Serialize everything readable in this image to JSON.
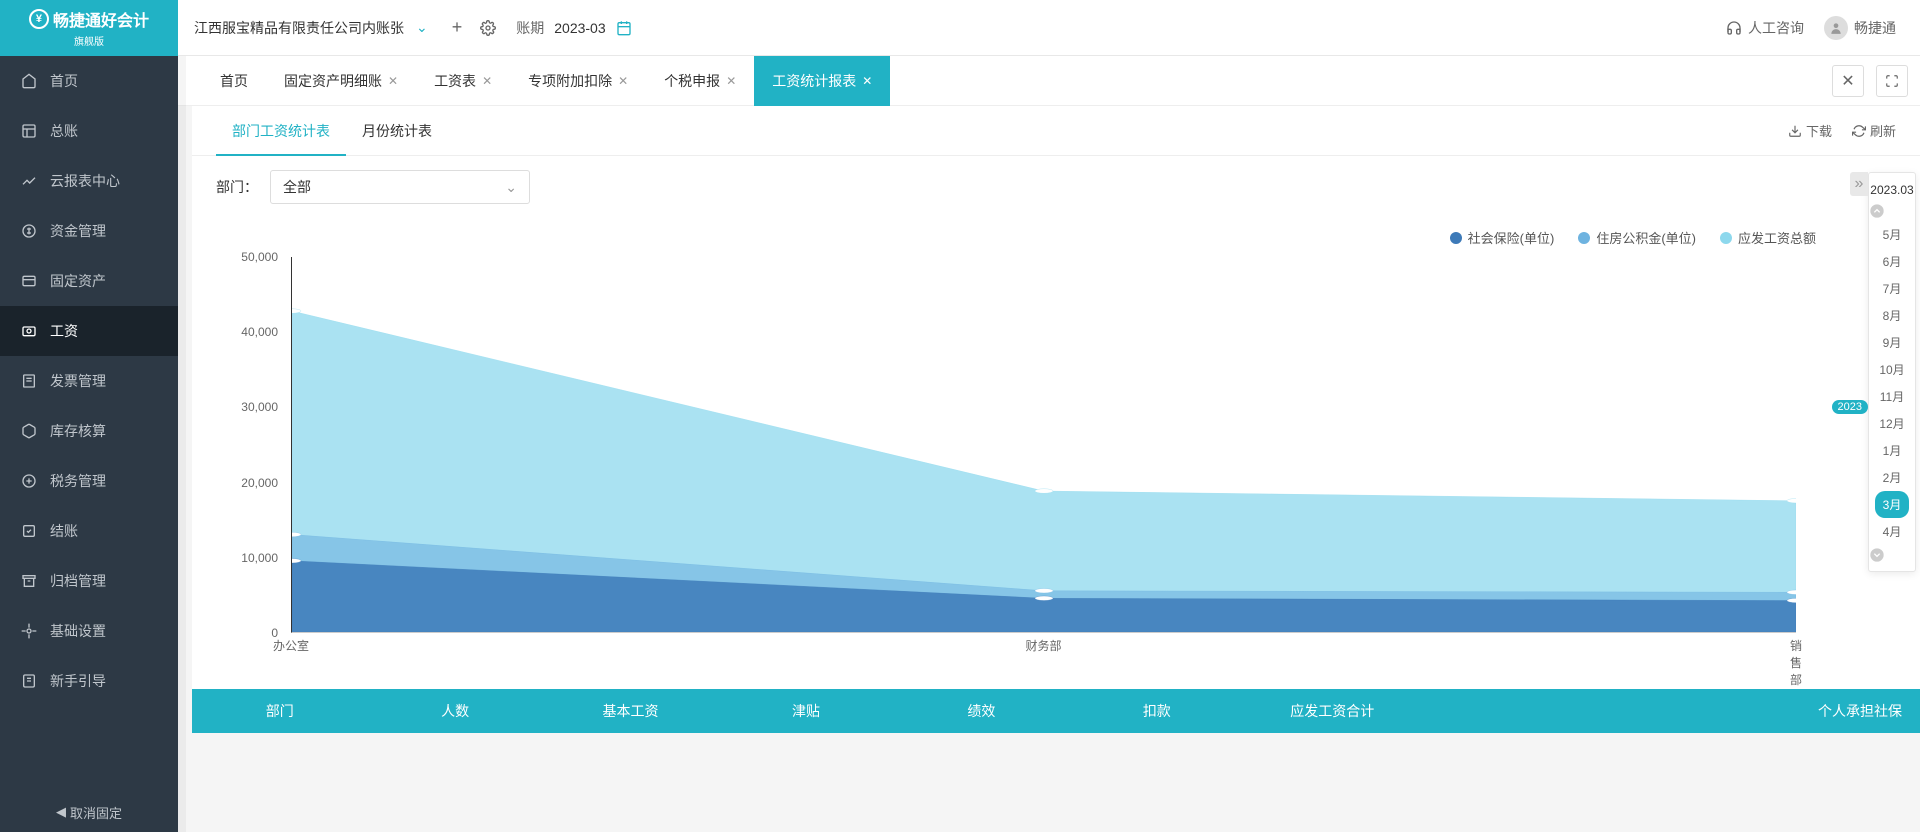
{
  "brand": {
    "main": "畅捷通好会计",
    "sub": "旗舰版"
  },
  "header": {
    "company": "江西服宝精品有限责任公司内账张",
    "period_label": "账期",
    "period_value": "2023-03",
    "consult": "人工咨询",
    "user": "畅捷通"
  },
  "sidebar": {
    "items": [
      {
        "icon": "home",
        "label": "首页"
      },
      {
        "icon": "ledger",
        "label": "总账"
      },
      {
        "icon": "report",
        "label": "云报表中心"
      },
      {
        "icon": "fund",
        "label": "资金管理"
      },
      {
        "icon": "asset",
        "label": "固定资产"
      },
      {
        "icon": "salary",
        "label": "工资"
      },
      {
        "icon": "invoice",
        "label": "发票管理"
      },
      {
        "icon": "inventory",
        "label": "库存核算"
      },
      {
        "icon": "tax",
        "label": "税务管理"
      },
      {
        "icon": "close",
        "label": "结账"
      },
      {
        "icon": "archive",
        "label": "归档管理"
      },
      {
        "icon": "settings",
        "label": "基础设置"
      },
      {
        "icon": "guide",
        "label": "新手引导"
      }
    ],
    "active_index": 5,
    "footer": "取消固定"
  },
  "tabs": {
    "items": [
      {
        "label": "首页",
        "closable": false
      },
      {
        "label": "固定资产明细账",
        "closable": true
      },
      {
        "label": "工资表",
        "closable": true
      },
      {
        "label": "专项附加扣除",
        "closable": true
      },
      {
        "label": "个税申报",
        "closable": true
      },
      {
        "label": "工资统计报表",
        "closable": true
      }
    ],
    "active_index": 5
  },
  "sub_tabs": {
    "items": [
      "部门工资统计表",
      "月份统计表"
    ],
    "active_index": 0,
    "download": "下载",
    "refresh": "刷新"
  },
  "filter": {
    "label": "部门：",
    "value": "全部"
  },
  "chart": {
    "type": "area",
    "legend": [
      {
        "label": "社会保险(单位)",
        "color": "#3d7ab8"
      },
      {
        "label": "住房公积金(单位)",
        "color": "#6eb3e0"
      },
      {
        "label": "应发工资总额",
        "color": "#8dd8ed"
      }
    ],
    "y_axis": {
      "min": 0,
      "max": 50000,
      "step": 10000,
      "labels": [
        "0",
        "10,000",
        "20,000",
        "30,000",
        "40,000",
        "50,000"
      ]
    },
    "x_axis": {
      "categories": [
        "办公室",
        "财务部",
        "销售部"
      ]
    },
    "series": {
      "social": {
        "color": "#3d7ab8",
        "fill_opacity": 0.85,
        "values": [
          9500,
          4500,
          4200
        ]
      },
      "housing": {
        "color": "#6eb3e0",
        "fill_opacity": 0.6,
        "values": [
          13000,
          5500,
          5300
        ]
      },
      "salary": {
        "color": "#8dd8ed",
        "fill_opacity": 0.75,
        "values": [
          42800,
          18800,
          17500
        ]
      }
    },
    "background_color": "#ffffff"
  },
  "table_header": [
    "部门",
    "人数",
    "基本工资",
    "津贴",
    "绩效",
    "扣款",
    "应发工资合计"
  ],
  "table_header_last": "个人承担社保",
  "month_panel": {
    "header": "2023.03",
    "year_badge": "2023",
    "months": [
      "5月",
      "6月",
      "7月",
      "8月",
      "9月",
      "10月",
      "11月",
      "12月",
      "1月",
      "2月",
      "3月",
      "4月"
    ],
    "active_month_index": 10
  }
}
